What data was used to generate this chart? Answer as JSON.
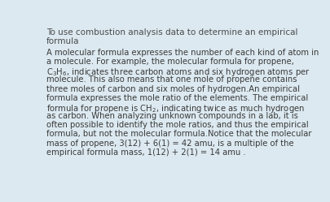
{
  "background_color": "#dce9f0",
  "title_line1": "To use combustion analysis data to determine an empirical",
  "title_line2": "formula",
  "title_fontsize": 7.5,
  "title_color": "#4a4a4a",
  "body_fontsize": 7.2,
  "body_color": "#3a3a3a",
  "body_line1": "A molecular formula expresses the number of each kind of atom in",
  "body_line2": "a molecule. For example, the molecular formula for propene,",
  "body_line3a": "C",
  "body_line3b": "3",
  "body_line3c": "H",
  "body_line3d": "6",
  "body_line3e": ", indicates three carbon atoms and six hydrogen atoms per",
  "body_line4": "molecule. This also means that one mole of propene contains",
  "body_line5": "three moles of carbon and six moles of hydrogen.An empirical",
  "body_line6": "formula expresses the mole ratio of the elements. The empirical",
  "body_line7a": "formula for propene is CH",
  "body_line7b": "2",
  "body_line7c": ", indicating twice as much hydrogen",
  "body_line8": "as carbon. When analyzing unknown compounds in a lab, it is",
  "body_line9": "often possible to identify the mole ratios, and thus the empirical",
  "body_line10": "formula, but not the molecular formula.Notice that the molecular",
  "body_line11": "mass of propene, 3(12) + 6(1) = 42 amu, is a multiple of the",
  "body_line12": "empirical formula mass, 1(12) + 2(1) = 14 amu .",
  "fig_width": 4.05,
  "fig_height": 2.49,
  "dpi": 100
}
